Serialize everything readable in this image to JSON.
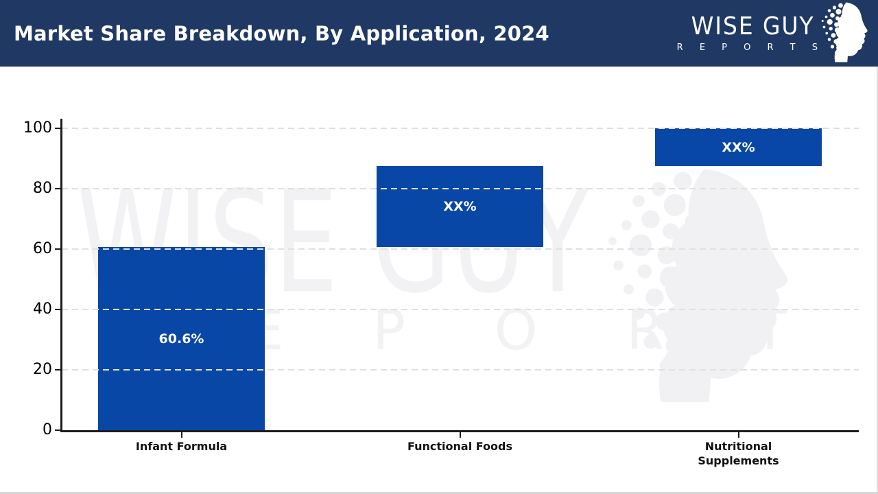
{
  "header": {
    "title": "Market Share Breakdown, By Application, 2024",
    "bg_color": "#1f3864",
    "logo": {
      "line1": "WISE GUY",
      "line2": "R E P O R T S"
    }
  },
  "watermark": {
    "line1": "WISE GUY",
    "line2": "R E P O R T S"
  },
  "chart_data": {
    "type": "bar",
    "subtype": "waterfall-breakdown",
    "title": "Market Share Breakdown, By Application, 2024",
    "categories": [
      "Infant Formula",
      "Functional Foods",
      "Nutritional Supplements"
    ],
    "segments": [
      {
        "category": "Infant Formula",
        "start": 0,
        "end": 60.6,
        "label": "60.6%"
      },
      {
        "category": "Functional Foods",
        "start": 60.6,
        "end": 87.5,
        "label": "XX%"
      },
      {
        "category": "Nutritional Supplements",
        "start": 87.5,
        "end": 100,
        "label": "XX%"
      }
    ],
    "ylim": [
      0,
      100
    ],
    "yticks": [
      0,
      20,
      40,
      60,
      80,
      100
    ],
    "xlabel": "",
    "ylabel": "",
    "grid": "horizontal-dashed",
    "bar_color": "#0847a5",
    "bar_label_color": "#ffffff",
    "axis_color": "#1c1c1c",
    "grid_color": "#e0e0e0",
    "legend": "none"
  }
}
